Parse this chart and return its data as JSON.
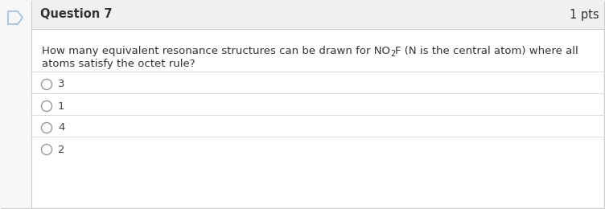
{
  "title": "Question 7",
  "pts": "1 pts",
  "q_line1_before": "How many equivalent resonance structures can be drawn for NO",
  "q_sub": "2",
  "q_line1_after": "F (N is the central atom) where all",
  "q_line2": "atoms satisfy the octet rule?",
  "choices": [
    "3",
    "1",
    "4",
    "2"
  ],
  "header_bg": "#f0f0f0",
  "body_bg": "#ffffff",
  "outer_border_color": "#cccccc",
  "header_text_color": "#333333",
  "question_text_color": "#333333",
  "choice_text_color": "#444444",
  "divider_color": "#dddddd",
  "radio_edge_color": "#999999",
  "left_icon_color": "#aec8e0",
  "header_font_size": 10.5,
  "pts_font_size": 10.5,
  "question_font_size": 9.5,
  "choice_font_size": 9.5,
  "sub_font_size": 7.0
}
